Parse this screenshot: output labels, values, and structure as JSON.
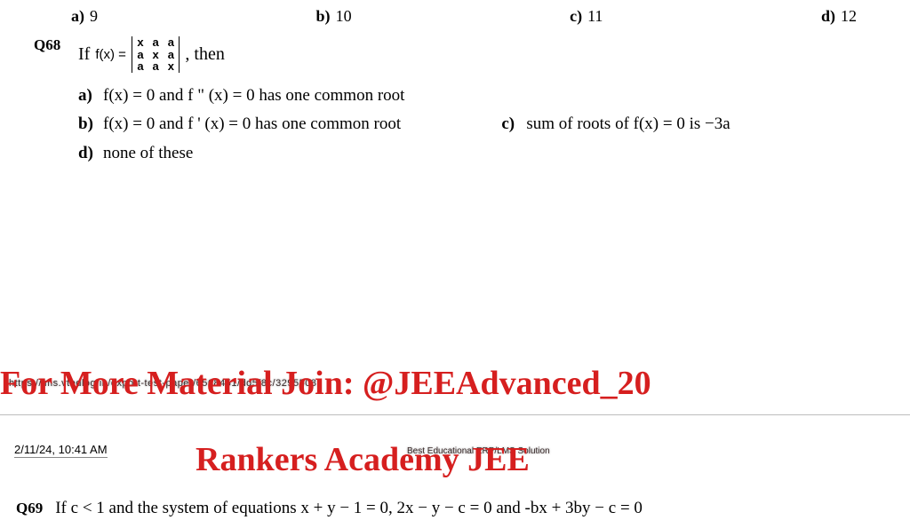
{
  "prev_options": {
    "a": {
      "label": "a)",
      "value": "9"
    },
    "b": {
      "label": "b)",
      "value": "10"
    },
    "c": {
      "label": "c)",
      "value": "11"
    },
    "d": {
      "label": "d)",
      "value": "12"
    }
  },
  "q68": {
    "number": "Q68",
    "if": "If",
    "fx_eq": "f(x) =",
    "det": [
      [
        "x",
        "a",
        "a"
      ],
      [
        "a",
        "x",
        "a"
      ],
      [
        "a",
        "a",
        "x"
      ]
    ],
    "then": ", then",
    "options": {
      "a": {
        "label": "a)",
        "text": "f(x) = 0 and f \" (x) = 0 has one common root"
      },
      "b": {
        "label": "b)",
        "text": "f(x) = 0 and f ' (x) = 0 has one common root"
      },
      "c": {
        "label": "c)",
        "text": "sum of roots of f(x) = 0 is −3a"
      },
      "d": {
        "label": "d)",
        "text": "none of these"
      }
    }
  },
  "promo": "For More Material Join: @JEEAdvanced_20",
  "watermark1": "https://lms.vtedlog.in/export-test-paper/6568451/dd5/8c/3295508",
  "timestamp": "2/11/24, 10:41 AM",
  "rankers": "Rankers Academy JEE",
  "watermark2": "Best Educational ERP/LMS Solution",
  "q69": {
    "number": "Q69",
    "text": "If c < 1 and the system of equations x + y − 1 = 0, 2x − y − c = 0 and -bx + 3by − c = 0"
  },
  "colors": {
    "red": "#d61f1f",
    "text": "#000000",
    "bg": "#ffffff"
  }
}
